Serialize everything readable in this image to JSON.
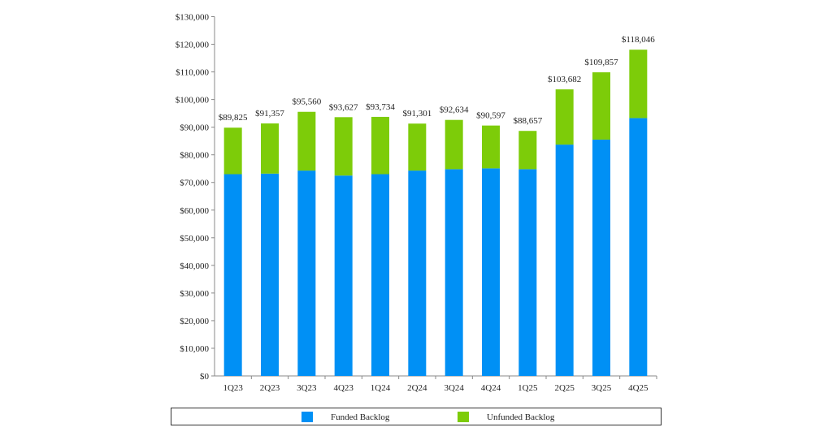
{
  "chart_data": {
    "type": "bar",
    "stacked": true,
    "categories": [
      "1Q23",
      "2Q23",
      "3Q23",
      "4Q23",
      "1Q24",
      "2Q24",
      "3Q24",
      "4Q24",
      "1Q25",
      "2Q25",
      "3Q25",
      "4Q25"
    ],
    "series": [
      {
        "name": "Funded Backlog",
        "color": "#0090f5",
        "values": [
          73000,
          73200,
          74300,
          72500,
          73000,
          74300,
          74800,
          75100,
          74800,
          83700,
          85500,
          93300
        ]
      },
      {
        "name": "Unfunded Backlog",
        "color": "#7dcc09",
        "values": [
          16825,
          18157,
          21260,
          21127,
          20734,
          17001,
          17834,
          15497,
          13857,
          19982,
          24357,
          24746
        ]
      }
    ],
    "totals": [
      89825,
      91357,
      95560,
      93627,
      93734,
      91301,
      92634,
      90597,
      88657,
      103682,
      109857,
      118046
    ],
    "total_labels": [
      "$89,825",
      "$91,357",
      "$95,560",
      "$93,627",
      "$93,734",
      "$91,301",
      "$92,634",
      "$90,597",
      "$88,657",
      "$103,682",
      "$109,857",
      "$118,046"
    ],
    "ylim": [
      0,
      130000
    ],
    "yticks": [
      "$0",
      "$10,000",
      "$20,000",
      "$30,000",
      "$40,000",
      "$50,000",
      "$60,000",
      "$70,000",
      "$80,000",
      "$90,000",
      "$100,000",
      "$110,000",
      "$120,000",
      "$130,000"
    ],
    "grid": false,
    "legend_position": "bottom"
  }
}
